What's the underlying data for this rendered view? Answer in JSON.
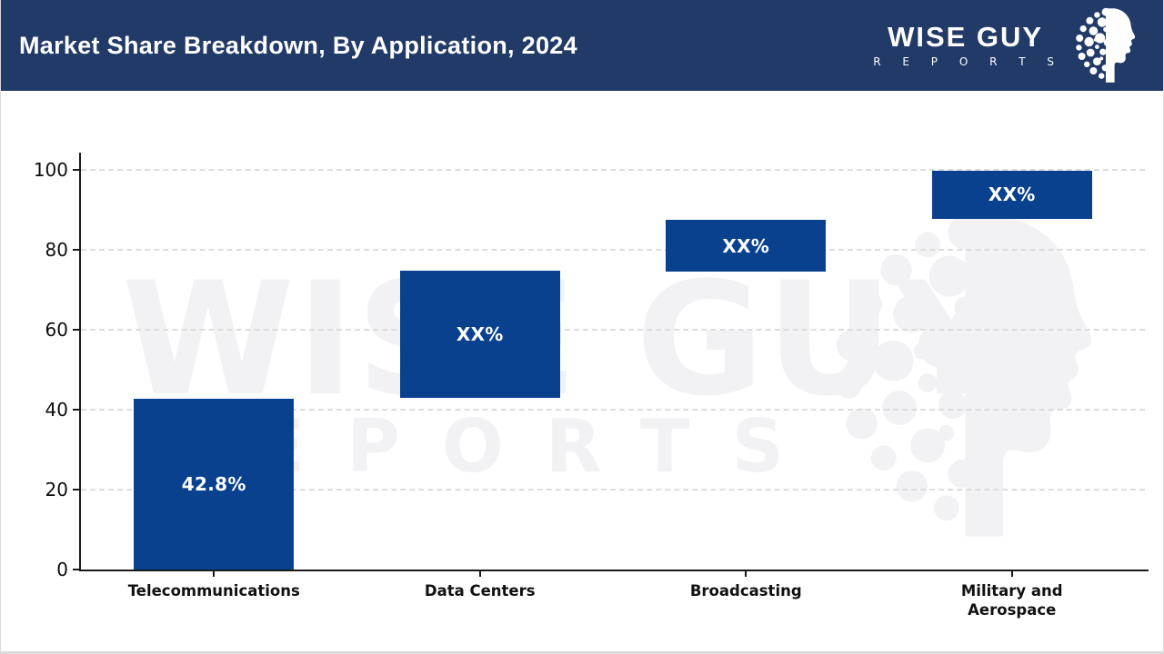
{
  "header": {
    "title": "Market Share Breakdown, By Application, 2024",
    "bg_color": "#213a68",
    "logo": {
      "name": "WISE GUY",
      "sub": "R E P O R T S",
      "face_icon": "dotted-head-profile"
    }
  },
  "watermark": {
    "line1": "WISE GUY",
    "line2": "REPORTS",
    "face_icon": "dotted-head-profile"
  },
  "chart_data": {
    "type": "bar",
    "subtype": "floating-waterfall",
    "title": "Market Share Breakdown, By Application, 2024",
    "categories": [
      "Telecommunications",
      "Data Centers",
      "Broadcasting",
      "Military and\nAerospace"
    ],
    "series": [
      {
        "name": "Market Share",
        "segments": [
          {
            "category": "Telecommunications",
            "start": 0,
            "end": 42.8,
            "label": "42.8%"
          },
          {
            "category": "Data Centers",
            "start": 43.0,
            "end": 74.8,
            "label": "XX%"
          },
          {
            "category": "Broadcasting",
            "start": 74.5,
            "end": 87.5,
            "label": "XX%"
          },
          {
            "category": "Military and Aerospace",
            "start": 87.7,
            "end": 99.8,
            "label": "XX%"
          }
        ]
      }
    ],
    "xlabel": "",
    "ylabel": "",
    "ylim": [
      0,
      100
    ],
    "yticks": [
      0,
      20,
      40,
      60,
      80,
      100
    ],
    "grid": "horizontal-dashed",
    "grid_color": "#dcdcdc",
    "bar_color": "#09418f",
    "value_label_color": "#ffffff",
    "axis_color": "#1a1a1a",
    "legend": "none"
  }
}
